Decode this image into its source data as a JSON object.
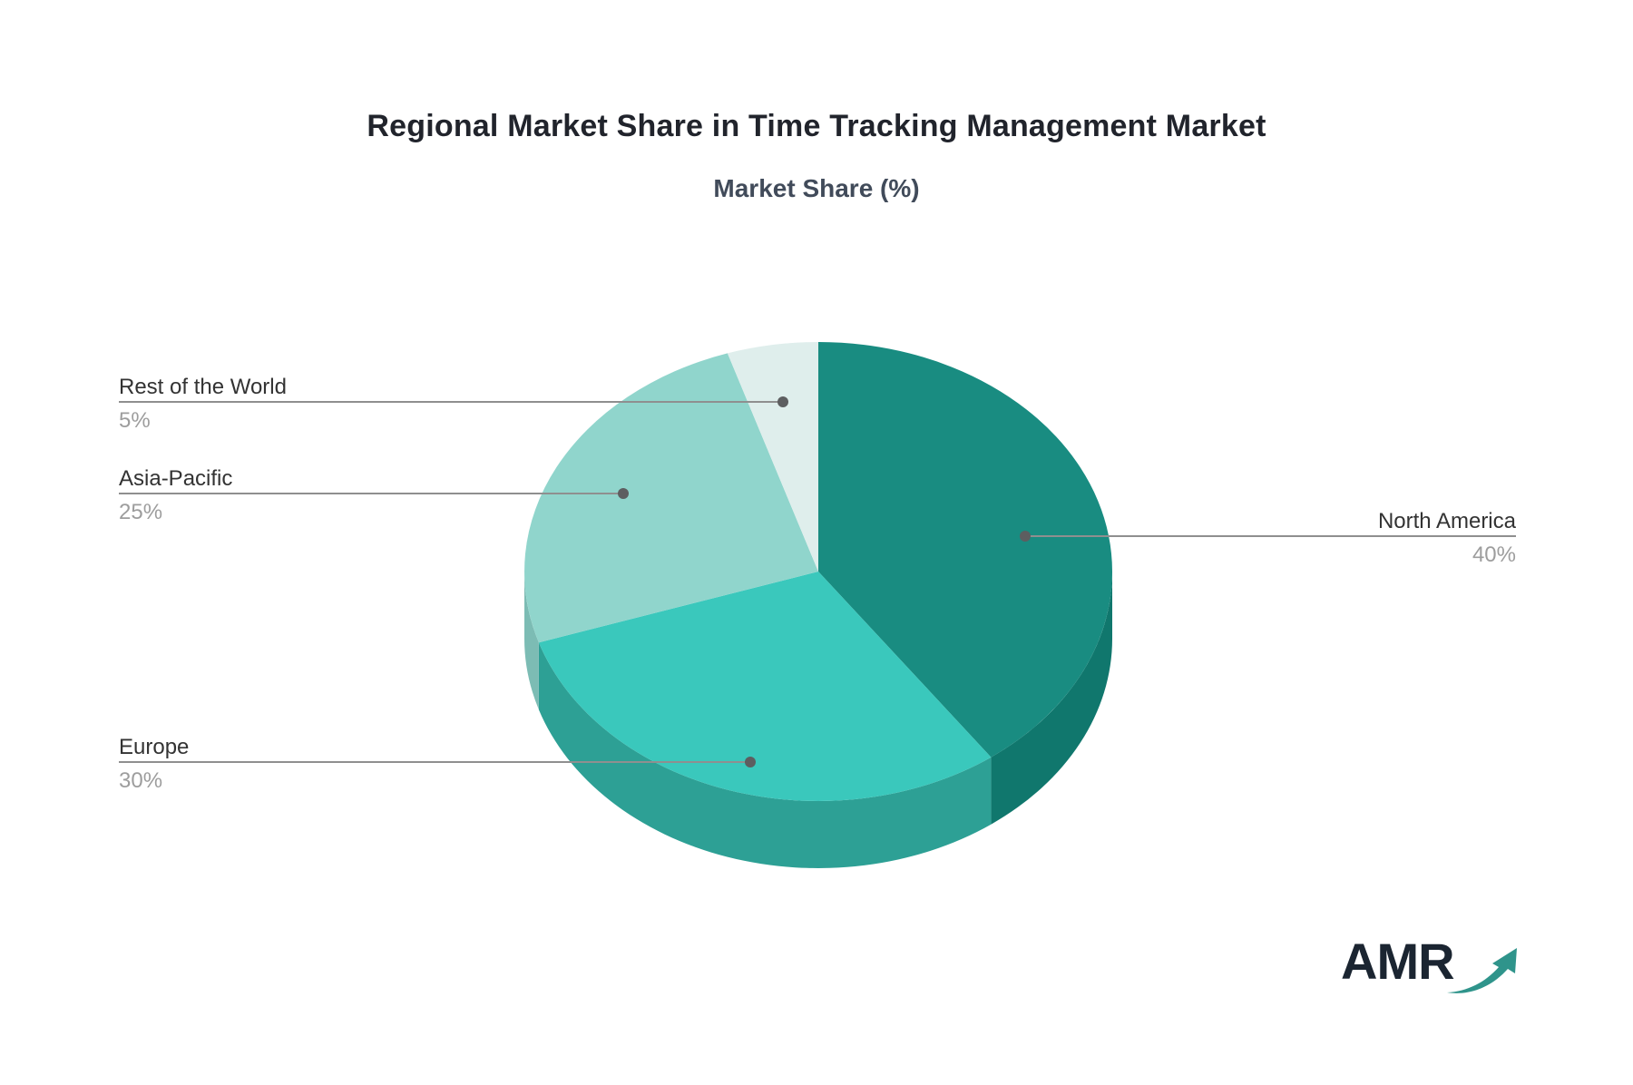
{
  "page": {
    "background": "#ffffff"
  },
  "header": {
    "title": "Regional Market Share in Time Tracking Management Market",
    "subtitle": "Market Share (%)"
  },
  "chart_data": {
    "type": "pie",
    "effect": "3d",
    "title": "Regional Market Share in Time Tracking Management Market",
    "subtitle": "Market Share (%)",
    "unit": "%",
    "start_angle_deg": 0,
    "direction": "clockwise",
    "total": 100,
    "legend_position": "callout-lines",
    "slices": [
      {
        "label": "North America",
        "value": 40,
        "value_label": "40%",
        "color": "#198c81",
        "side_color": "#10776d"
      },
      {
        "label": "Europe",
        "value": 30,
        "value_label": "30%",
        "color": "#3ac8bc",
        "side_color": "#2da095"
      },
      {
        "label": "Asia-Pacific",
        "value": 25,
        "value_label": "25%",
        "color": "#90d5cc",
        "side_color": "#7cbcb4"
      },
      {
        "label": "Rest of the World",
        "value": 5,
        "value_label": "5%",
        "color": "#dfeeec",
        "side_color": "#c9ddda"
      }
    ],
    "callout_line_color": "#8f8f8f",
    "callout_dot_color": "#5d5e60",
    "label_color": "#333333",
    "value_color": "#9d9d9d"
  },
  "logo": {
    "text": "AMR",
    "color": "#1b2531",
    "arrow_color": "#2f948b"
  }
}
